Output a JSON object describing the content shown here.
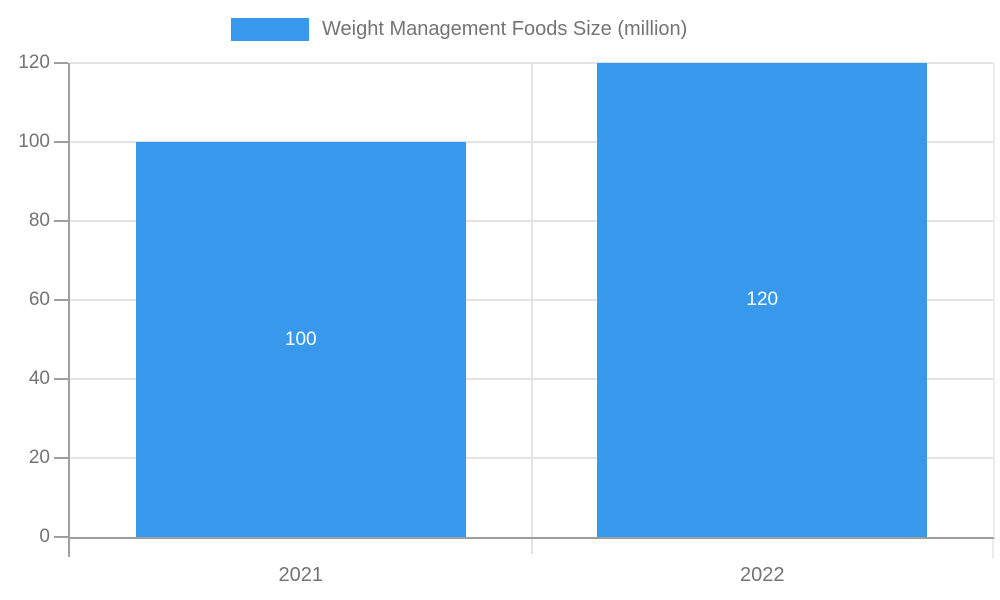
{
  "legend": {
    "label": "Weight Management Foods Size (million)"
  },
  "chart_data": {
    "type": "bar",
    "title": "Weight Management Foods Size (million)",
    "categories": [
      "2021",
      "2022"
    ],
    "series": [
      {
        "name": "Weight Management Foods Size (million)",
        "values": [
          100,
          120
        ]
      }
    ],
    "value_labels": [
      "100",
      "120"
    ],
    "xlabel": "",
    "ylabel": "",
    "ylim": [
      0,
      120
    ],
    "yticks": [
      0,
      20,
      40,
      60,
      80,
      100,
      120
    ],
    "grid": true,
    "legend_position": "top",
    "colors": {
      "bar": "#3898EC",
      "axis": "#9E9E9E",
      "grid": "#E3E3E3",
      "tick_label": "#747474",
      "value_label": "#FFFFFF",
      "background": "#FFFFFF"
    }
  }
}
